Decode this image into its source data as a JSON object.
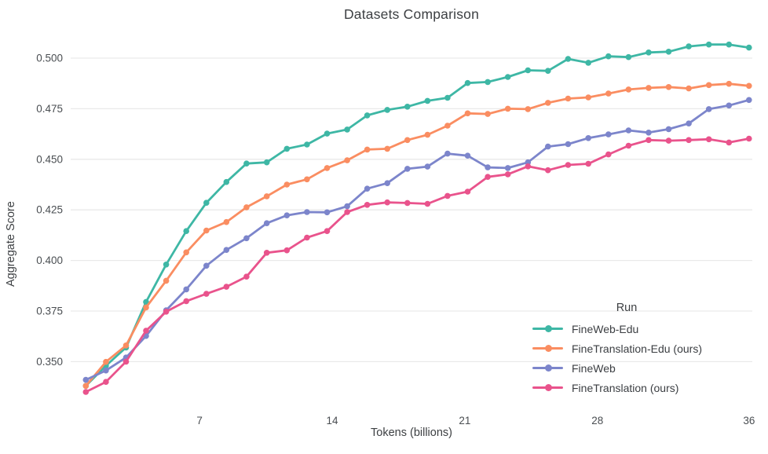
{
  "title": "Datasets Comparison",
  "x_axis": {
    "label": "Tokens (billions)",
    "tick_labels": [
      "7",
      "14",
      "21",
      "28",
      "36"
    ],
    "tick_values": [
      7,
      14,
      21,
      28,
      36
    ]
  },
  "y_axis": {
    "label": "Aggregate Score",
    "tick_labels": [
      "0.350",
      "0.375",
      "0.400",
      "0.425",
      "0.450",
      "0.475",
      "0.500"
    ],
    "tick_values": [
      0.35,
      0.375,
      0.4,
      0.425,
      0.45,
      0.475,
      0.5
    ]
  },
  "legend": {
    "title": "Run"
  },
  "colors": {
    "background": "#ffffff",
    "gridline": "#e9e9e9",
    "title_text": "#3d4043",
    "tick_text": "#4a4e52",
    "teal": "#3eb7a5",
    "orange": "#fa8d61",
    "purple": "#7c85cb",
    "pink": "#e9538c"
  },
  "chart_data": {
    "type": "line",
    "title": "Datasets Comparison",
    "xlabel": "Tokens (billions)",
    "ylabel": "Aggregate Score",
    "legend_title": "Run",
    "legend_position": "lower right inside plot",
    "grid": "horizontal only",
    "xlim": [
      0.2,
      36.4
    ],
    "ylim": [
      0.33,
      0.512
    ],
    "x": [
      1,
      2.06,
      3.12,
      4.18,
      5.24,
      6.3,
      7.36,
      8.42,
      9.48,
      10.55,
      11.61,
      12.67,
      13.73,
      14.79,
      15.85,
      16.91,
      17.97,
      19.03,
      20.09,
      21.15,
      22.21,
      23.27,
      24.33,
      25.39,
      26.45,
      27.52,
      28.58,
      29.64,
      30.7,
      31.76,
      32.82,
      33.88,
      34.94,
      36
    ],
    "series": [
      {
        "name": "FineWeb-Edu",
        "color": "#3eb7a5",
        "values": [
          0.338,
          0.348,
          0.357,
          0.3795,
          0.398,
          0.4145,
          0.4285,
          0.4388,
          0.4479,
          0.4485,
          0.4552,
          0.4573,
          0.4627,
          0.4647,
          0.4717,
          0.4744,
          0.476,
          0.4789,
          0.4804,
          0.4877,
          0.4882,
          0.4907,
          0.494,
          0.4937,
          0.4996,
          0.4977,
          0.5009,
          0.5005,
          0.5028,
          0.5032,
          0.5058,
          0.5067,
          0.5067,
          0.5052
        ]
      },
      {
        "name": "FineTranslation-Edu (ours)",
        "color": "#fa8d61",
        "values": [
          0.338,
          0.3499,
          0.358,
          0.3768,
          0.39,
          0.404,
          0.4148,
          0.419,
          0.4263,
          0.4317,
          0.4375,
          0.4401,
          0.4457,
          0.4495,
          0.4548,
          0.4552,
          0.4595,
          0.4621,
          0.4666,
          0.4727,
          0.4724,
          0.475,
          0.4748,
          0.4779,
          0.48,
          0.4806,
          0.4825,
          0.4845,
          0.4853,
          0.4857,
          0.485,
          0.4867,
          0.4873,
          0.4863
        ]
      },
      {
        "name": "FineWeb",
        "color": "#7c85cb",
        "values": [
          0.341,
          0.3456,
          0.352,
          0.3627,
          0.3754,
          0.3857,
          0.3974,
          0.4052,
          0.411,
          0.4184,
          0.4223,
          0.4239,
          0.4238,
          0.4268,
          0.4355,
          0.4382,
          0.4453,
          0.4464,
          0.4528,
          0.4518,
          0.446,
          0.4457,
          0.4485,
          0.4563,
          0.4575,
          0.4605,
          0.4623,
          0.4643,
          0.4632,
          0.4649,
          0.4677,
          0.4748,
          0.4766,
          0.4793
        ]
      },
      {
        "name": "FineTranslation (ours)",
        "color": "#e9538c",
        "values": [
          0.335,
          0.34,
          0.35,
          0.3653,
          0.3747,
          0.3799,
          0.3835,
          0.387,
          0.392,
          0.4038,
          0.405,
          0.4113,
          0.4145,
          0.4239,
          0.4275,
          0.4287,
          0.4284,
          0.428,
          0.4319,
          0.434,
          0.4413,
          0.4426,
          0.4465,
          0.4446,
          0.4472,
          0.4478,
          0.4524,
          0.4567,
          0.4595,
          0.4592,
          0.4595,
          0.4599,
          0.4583,
          0.4602
        ]
      }
    ]
  }
}
